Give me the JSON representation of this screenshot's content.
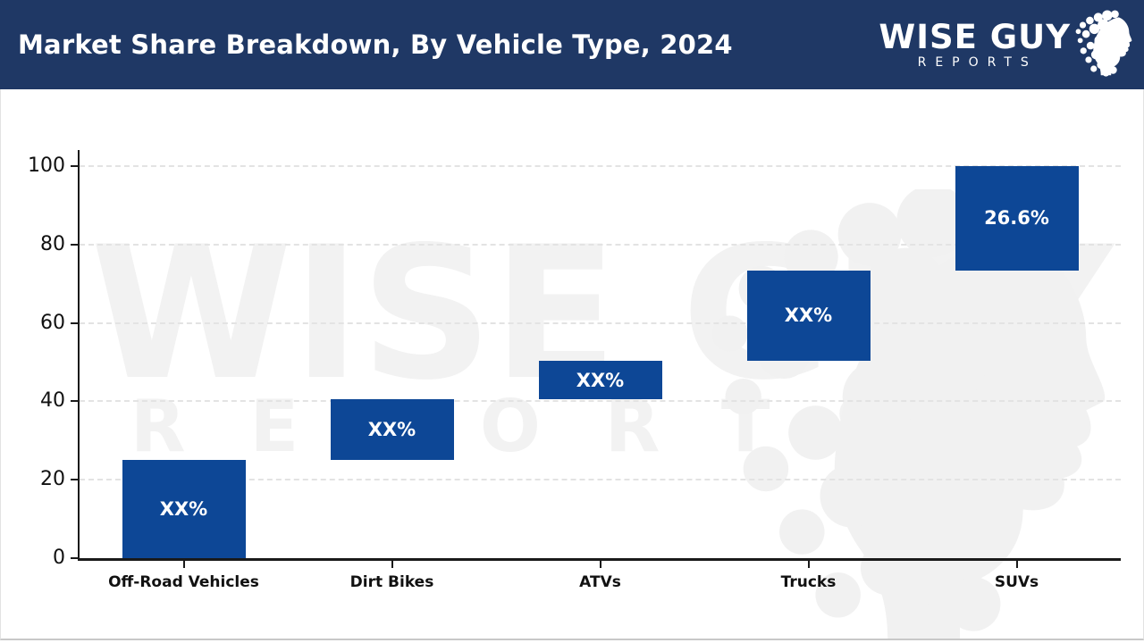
{
  "header": {
    "title": "Market Share Breakdown, By Vehicle Type, 2024",
    "bg_color": "#1f3865",
    "logo": {
      "wordmark": "WISE GUY",
      "subtext": "REPORTS"
    }
  },
  "watermark": {
    "wordmark": "WISE GUY",
    "subtext": "REPORTS"
  },
  "chart_data": {
    "type": "bar",
    "variant": "waterfall",
    "title": "Market Share Breakdown, By Vehicle Type, 2024",
    "categories": [
      "Off-Road Vehicles",
      "Dirt Bikes",
      "ATVs",
      "Trucks",
      "SUVs"
    ],
    "series": [
      {
        "name": "Market share (%)",
        "segments": [
          {
            "category": "Off-Road Vehicles",
            "start": 0,
            "end": 25.0,
            "label": "XX%"
          },
          {
            "category": "Dirt Bikes",
            "start": 25.0,
            "end": 40.5,
            "label": "XX%"
          },
          {
            "category": "ATVs",
            "start": 40.5,
            "end": 50.3,
            "label": "XX%"
          },
          {
            "category": "Trucks",
            "start": 50.3,
            "end": 73.4,
            "label": "XX%"
          },
          {
            "category": "SUVs",
            "start": 73.4,
            "end": 100.0,
            "label": "26.6%"
          }
        ]
      }
    ],
    "y_ticks": [
      0,
      20,
      40,
      60,
      80,
      100
    ],
    "ylim": [
      0,
      105
    ],
    "xlabel": "",
    "ylabel": "",
    "grid": true,
    "legend": false,
    "bar_color": "#0d4796",
    "bar_label_color": "#ffffff",
    "axis_color": "#1a1a1a",
    "gridline_color": "#e3e3e3"
  }
}
